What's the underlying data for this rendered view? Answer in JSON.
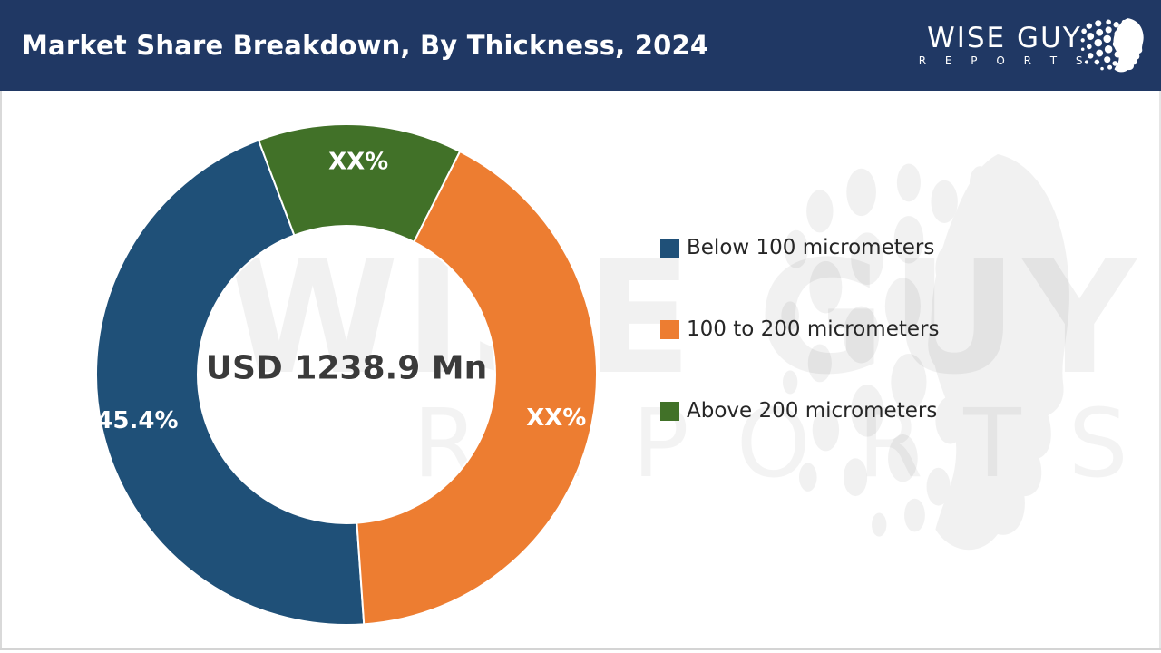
{
  "header": {
    "title": "Market Share Breakdown, By Thickness, 2024",
    "background_color": "#203864",
    "logo": {
      "line1": "WISE GUY",
      "line2": "R E P O R T S"
    }
  },
  "chart_data": {
    "type": "pie",
    "subtype": "donut",
    "title": "Market Share Breakdown, By Thickness, 2024",
    "center_label": "USD 1238.9 Mn",
    "start_angle_deg": 176,
    "clockwise": true,
    "legend_position": "right",
    "slices": [
      {
        "name": "Below 100 micrometers",
        "value": 45.4,
        "value_shown": "45.4%",
        "display_label": "45.4%",
        "color": "#1F5078"
      },
      {
        "name": "Above 200 micrometers",
        "value": 13.2,
        "value_shown": "XX%",
        "display_label": "XX%",
        "color": "#417128"
      },
      {
        "name": "100 to 200 micrometers",
        "value": 41.4,
        "value_shown": "XX%",
        "display_label": "XX%",
        "color": "#ED7D31"
      }
    ]
  },
  "legend": {
    "items": [
      {
        "label": "Below 100 micrometers",
        "color": "#1F5078"
      },
      {
        "label": "100 to 200 micrometers",
        "color": "#ED7D31"
      },
      {
        "label": "Above 200 micrometers",
        "color": "#417128"
      }
    ]
  },
  "watermark": {
    "line1": "WISE GUY",
    "line2": "REPORTS"
  }
}
